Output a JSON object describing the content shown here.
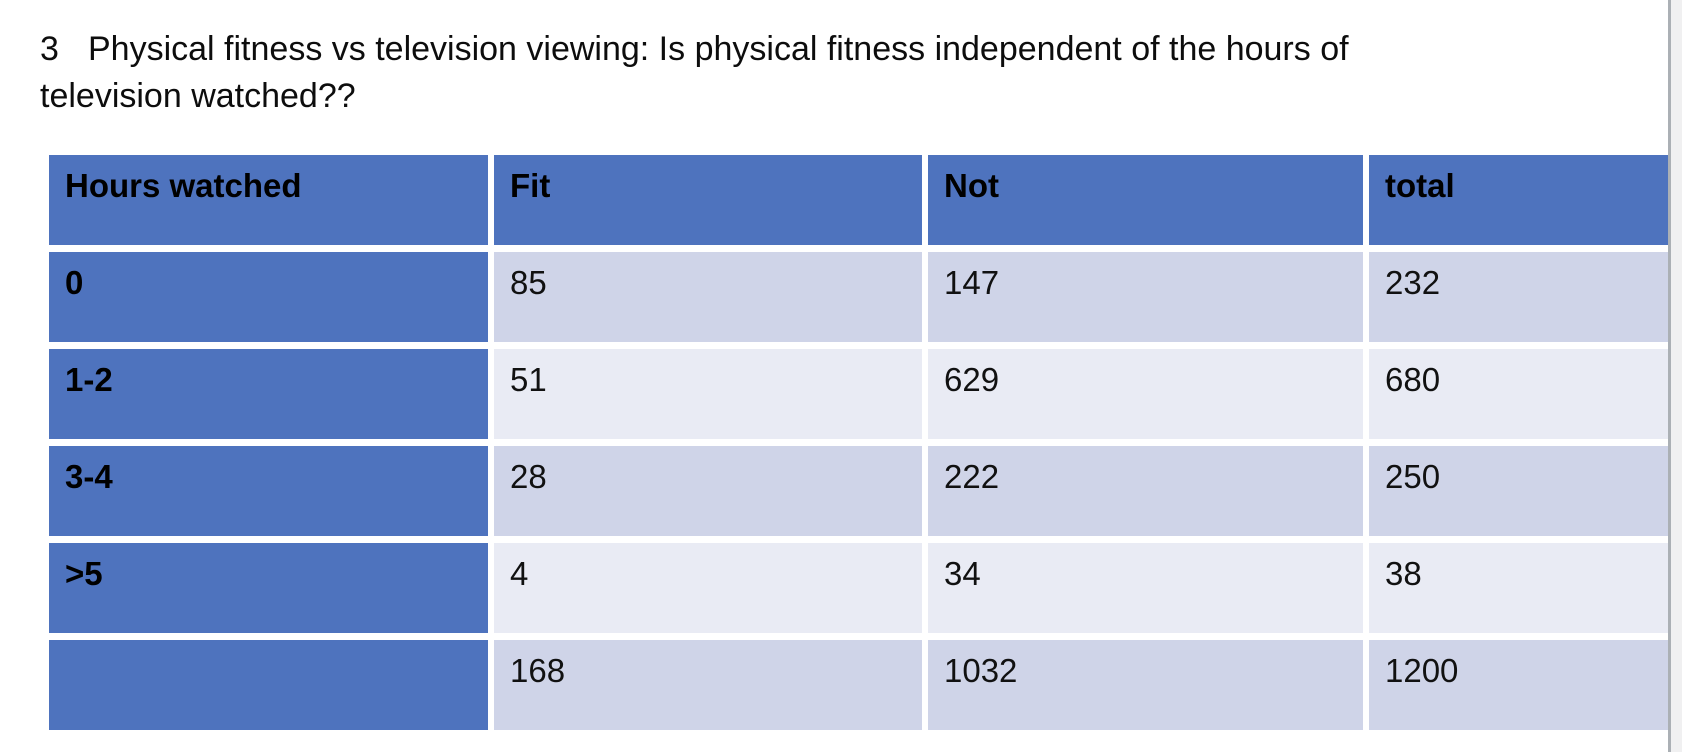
{
  "title": {
    "number": "3",
    "line1": "Physical fitness vs television viewing: Is physical fitness independent of the hours of",
    "line2": "television watched??"
  },
  "table": {
    "headers": [
      "Hours watched",
      "Fit",
      "Not",
      "total"
    ],
    "rows": [
      {
        "label": "0",
        "fit": "85",
        "not": "147",
        "total": "232"
      },
      {
        "label": "1-2",
        "fit": "51",
        "not": "629",
        "total": "680"
      },
      {
        "label": "3-4",
        "fit": "28",
        "not": "222",
        "total": "250"
      },
      {
        "label": ">5",
        "fit": "4",
        "not": "34",
        "total": "38"
      },
      {
        "label": "",
        "fit": "168",
        "not": "1032",
        "total": "1200"
      }
    ]
  },
  "colors": {
    "header_blue": "#4e73be",
    "band_dark": "#cfd4e8",
    "band_light": "#e9ebf4",
    "gutter_background": "#f0f0f1",
    "gutter_line": "#abb0b5"
  }
}
